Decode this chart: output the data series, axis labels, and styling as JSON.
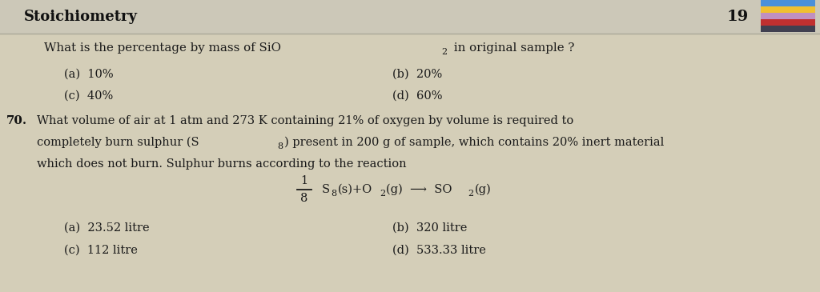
{
  "header_text": "Stoichiometry",
  "page_number": "19",
  "header_bg": "#ccc8b8",
  "content_bg": "#d4ceb8",
  "options_q69": [
    [
      "(a)  10%",
      "(b)  20%"
    ],
    [
      "(c)  40%",
      "(d)  60%"
    ]
  ],
  "options_q70": [
    [
      "(a)  23.52 litre",
      "(b)  320 litre"
    ],
    [
      "(c)  112 litre",
      "(d)  533.33 litre"
    ]
  ],
  "corner_colors": [
    "#4a90d9",
    "#f0c030",
    "#c090c0",
    "#c03030",
    "#404050"
  ],
  "font_color": "#1a1a1a",
  "bold_color": "#111111",
  "figw": 10.24,
  "figh": 3.65,
  "dpi": 100
}
